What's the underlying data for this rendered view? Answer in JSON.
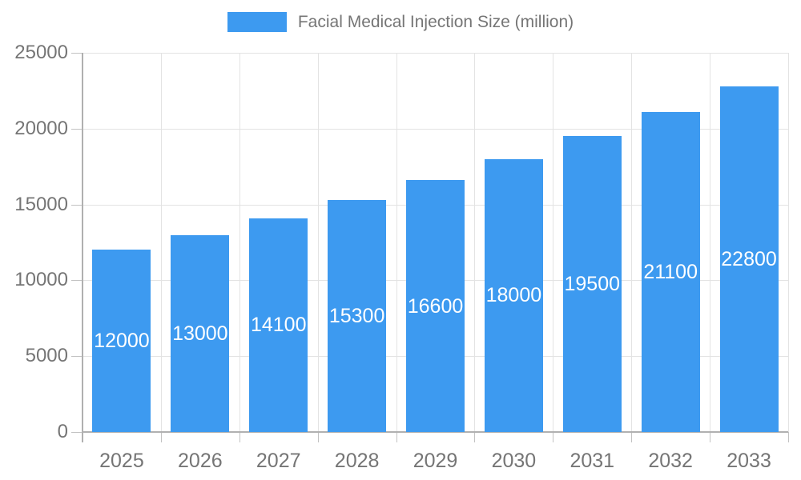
{
  "legend": {
    "label": "Facial Medical Injection Size (million)"
  },
  "chart_data": {
    "type": "bar",
    "title": "Facial Medical Injection Size (million)",
    "categories": [
      "2025",
      "2026",
      "2027",
      "2028",
      "2029",
      "2030",
      "2031",
      "2032",
      "2033"
    ],
    "values": [
      12000,
      13000,
      14100,
      15300,
      16600,
      18000,
      19500,
      21100,
      22800
    ],
    "series": [
      {
        "name": "Facial Medical Injection Size (million)",
        "values": [
          12000,
          13000,
          14100,
          15300,
          16600,
          18000,
          19500,
          21100,
          22800
        ]
      }
    ],
    "bar_value_labels": [
      "12000",
      "13000",
      "14100",
      "15300",
      "16600",
      "18000",
      "19500",
      "21100",
      "22800"
    ],
    "xlabel": "",
    "ylabel": "",
    "ylim": [
      0,
      25000
    ],
    "yticks": [
      0,
      5000,
      10000,
      15000,
      20000,
      25000
    ],
    "ytick_labels": [
      "0",
      "5000",
      "10000",
      "15000",
      "20000",
      "25000"
    ],
    "grid": true,
    "legend_position": "top",
    "colors": {
      "bar": "#3d9af0",
      "axis": "#b0b0b0",
      "gridline": "#e3e3e3",
      "tick": "#c2c2c2",
      "axis_text": "#757575",
      "bar_label_text": "#ffffff",
      "background": "#ffffff"
    }
  }
}
